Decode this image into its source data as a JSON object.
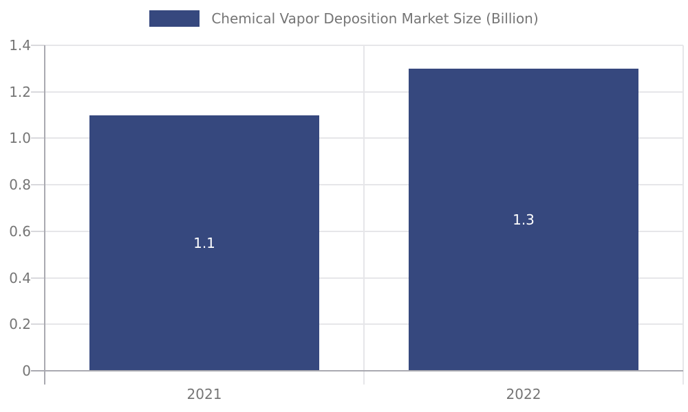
{
  "chart_data": {
    "type": "bar",
    "title": "",
    "series_label": "Chemical Vapor Deposition Market Size (Billion)",
    "categories": [
      "2021",
      "2022"
    ],
    "values": [
      1.1,
      1.3
    ],
    "value_labels": [
      "1.1",
      "1.3"
    ],
    "ylim": [
      0,
      1.4
    ],
    "yticks": [
      "0",
      "0.2",
      "0.4",
      "0.6",
      "0.8",
      "1.0",
      "1.2",
      "1.4"
    ],
    "xlabel": "",
    "ylabel": "",
    "grid": true,
    "legend_position": "top-center",
    "bar_label_position": "inside-center"
  },
  "colors": {
    "bar": "#36487E",
    "grid": "#e6e6e9",
    "axis": "#a9a9b0",
    "tick": "#d8d8dc",
    "tick_text": "#757575",
    "bar_label": "#ffffff",
    "background": "#ffffff"
  }
}
